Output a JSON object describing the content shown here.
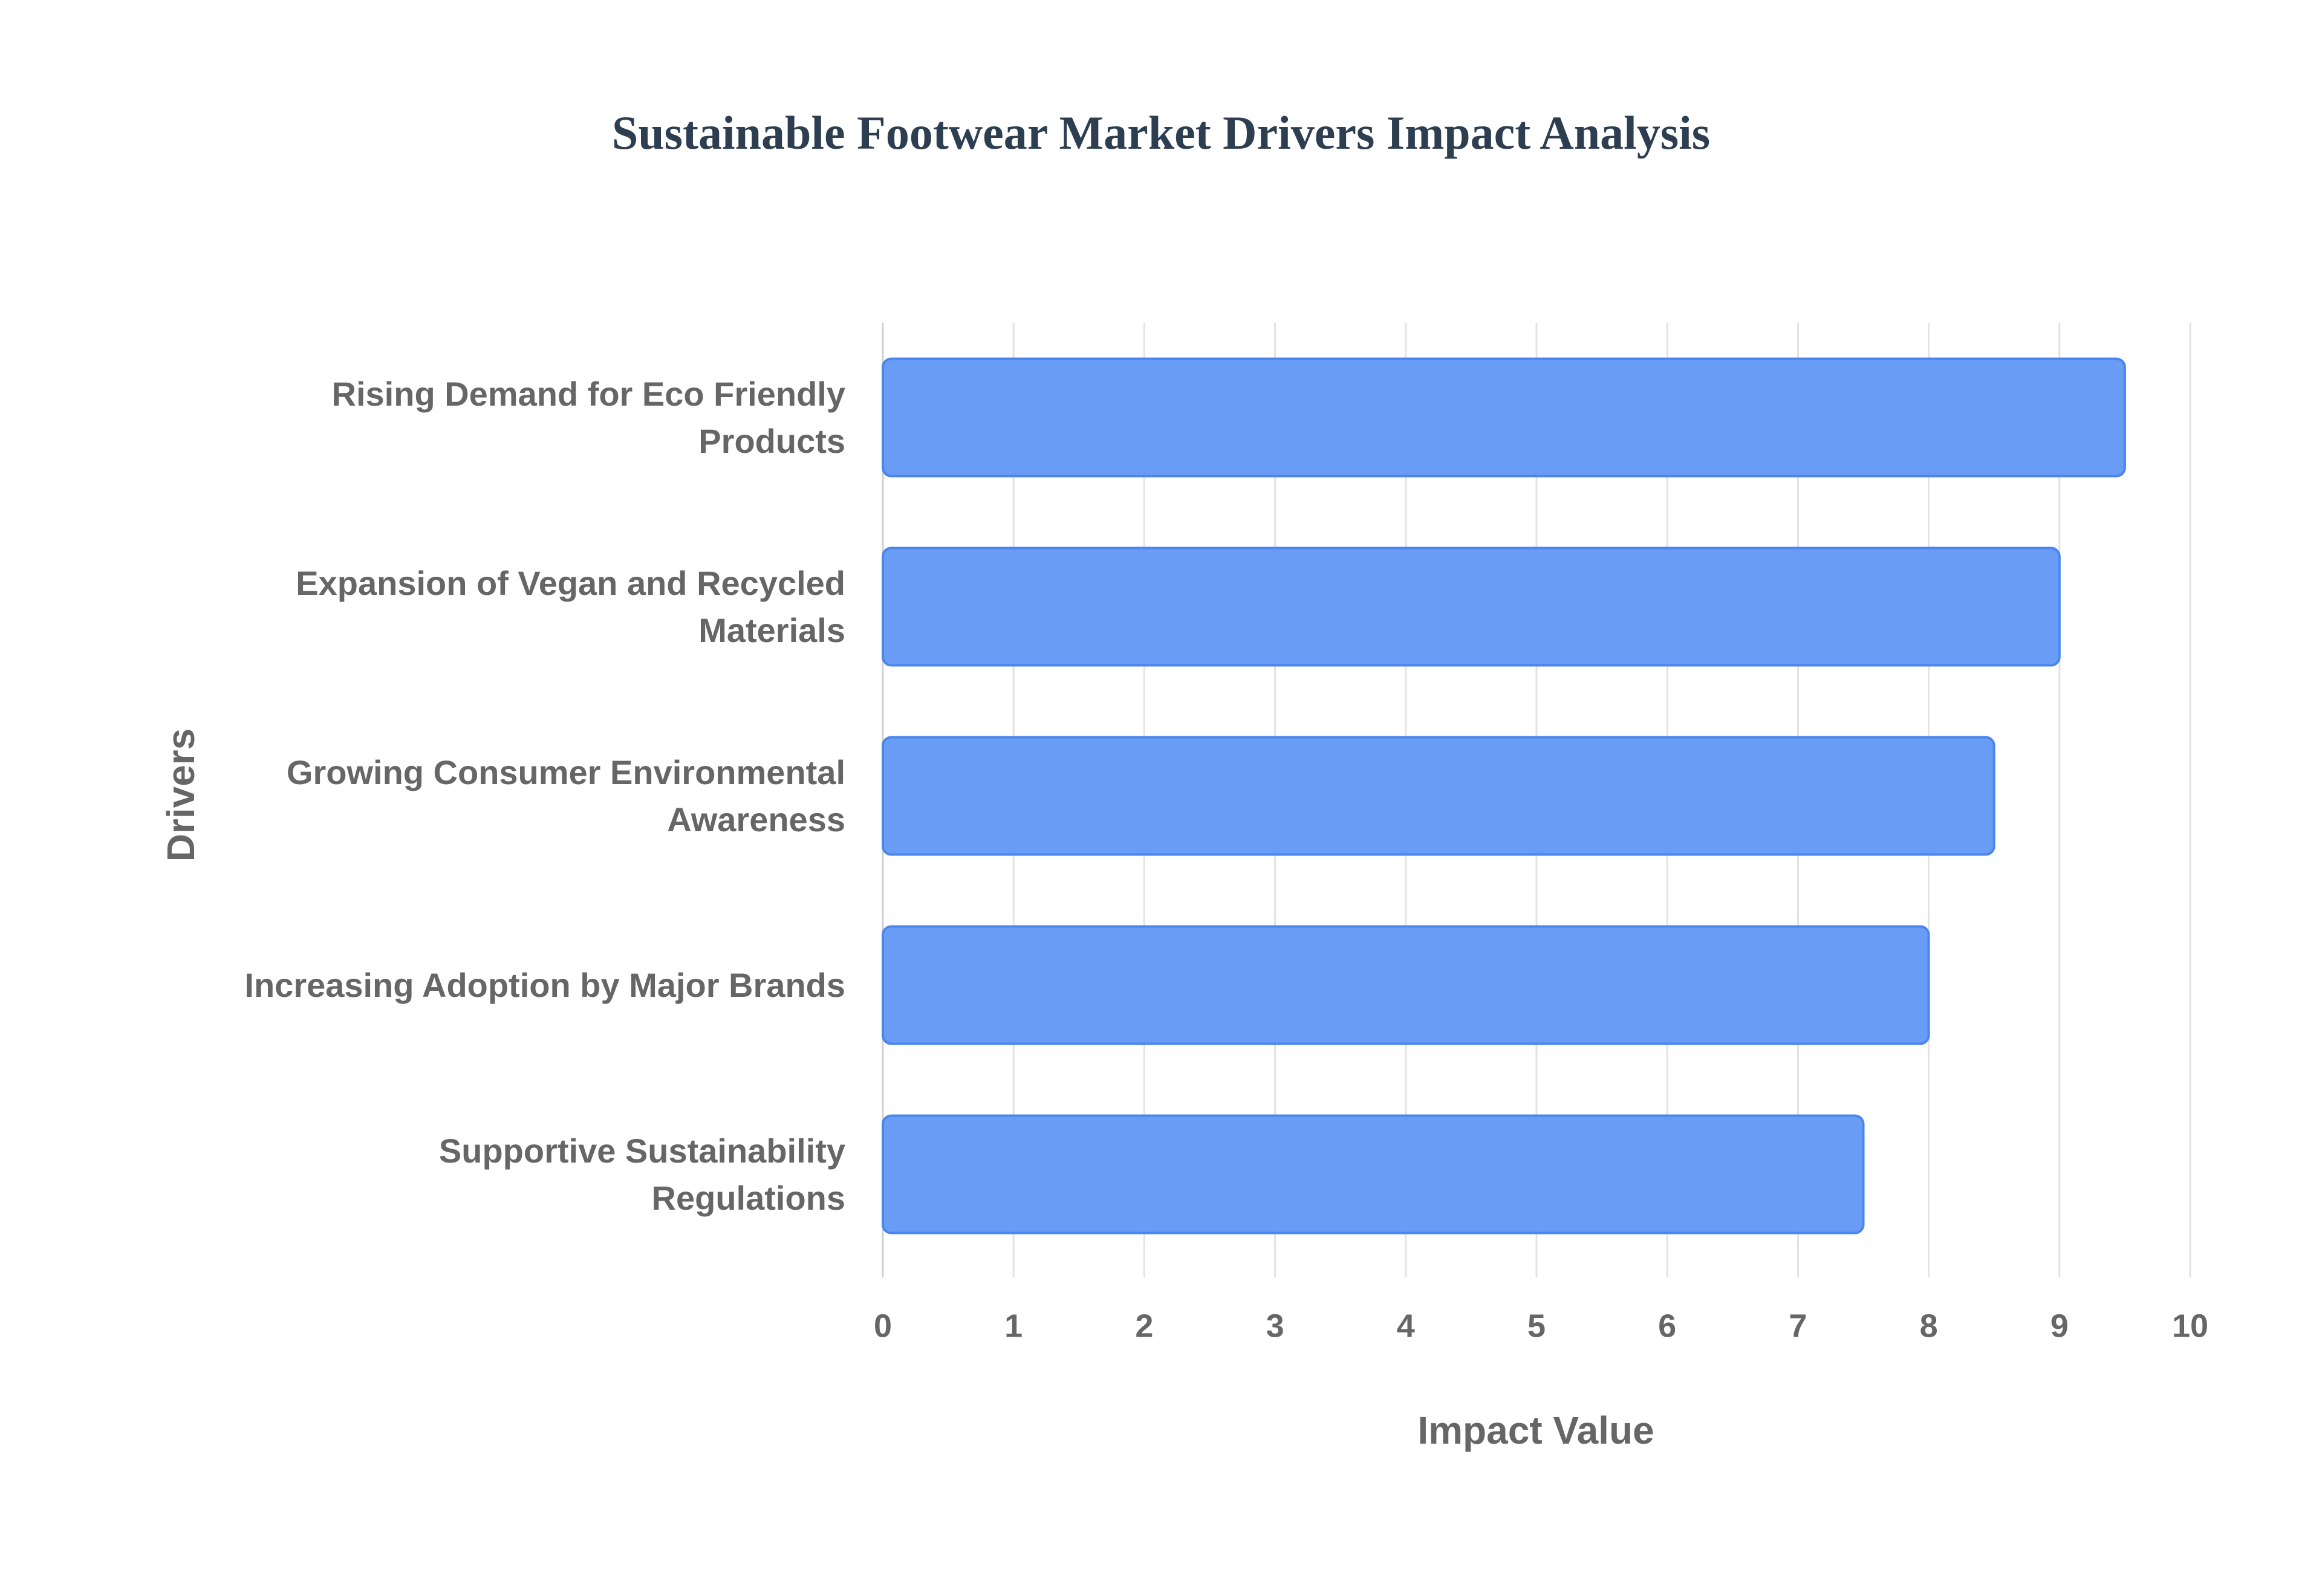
{
  "chart_data": {
    "type": "bar",
    "orientation": "horizontal",
    "title": "Sustainable Footwear Market Drivers Impact Analysis",
    "x_label": "Impact Value",
    "y_label": "Drivers",
    "categories": [
      "Rising Demand for Eco Friendly Products",
      "Expansion of Vegan and Recycled Materials",
      "Growing Consumer Environmental Awareness",
      "Increasing Adoption by Major Brands",
      "Supportive Sustainability Regulations"
    ],
    "values": [
      9.5,
      9,
      8.5,
      8,
      7.5
    ],
    "color": "#6499f5",
    "xlim": [
      0,
      10
    ],
    "xticks": [
      0,
      1,
      2,
      3,
      4,
      5,
      6,
      7,
      8,
      9,
      10
    ],
    "grid": true
  }
}
